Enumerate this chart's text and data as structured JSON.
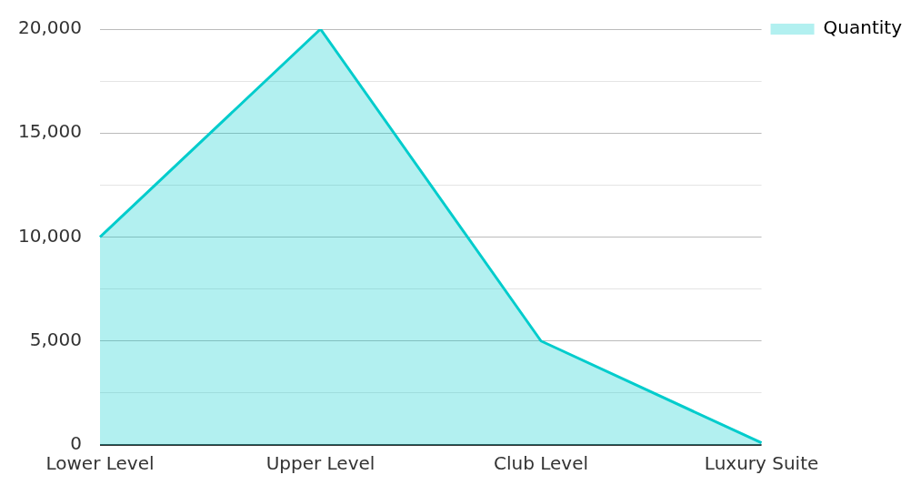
{
  "chart_data": {
    "type": "area",
    "categories": [
      "Lower Level",
      "Upper Level",
      "Club Level",
      "Luxury Suite"
    ],
    "series": [
      {
        "name": "Quantity",
        "color": "#00cccc",
        "values": [
          10000,
          20000,
          5000,
          100
        ]
      }
    ],
    "ylim": [
      0,
      20000
    ],
    "yticks": [
      0,
      {
        "value": 2500,
        "label": null
      },
      "5,000",
      {
        "value": 7500,
        "label": null
      },
      {
        "value": 10000,
        "label": "10,000"
      },
      {
        "value": 12500,
        "label": null
      },
      {
        "value": 15000,
        "label": "15,000"
      },
      {
        "value": 17500,
        "label": null
      },
      {
        "value": 20000,
        "label": "20,000"
      }
    ],
    "grid": "y",
    "legend": "top right",
    "marker": "none"
  }
}
